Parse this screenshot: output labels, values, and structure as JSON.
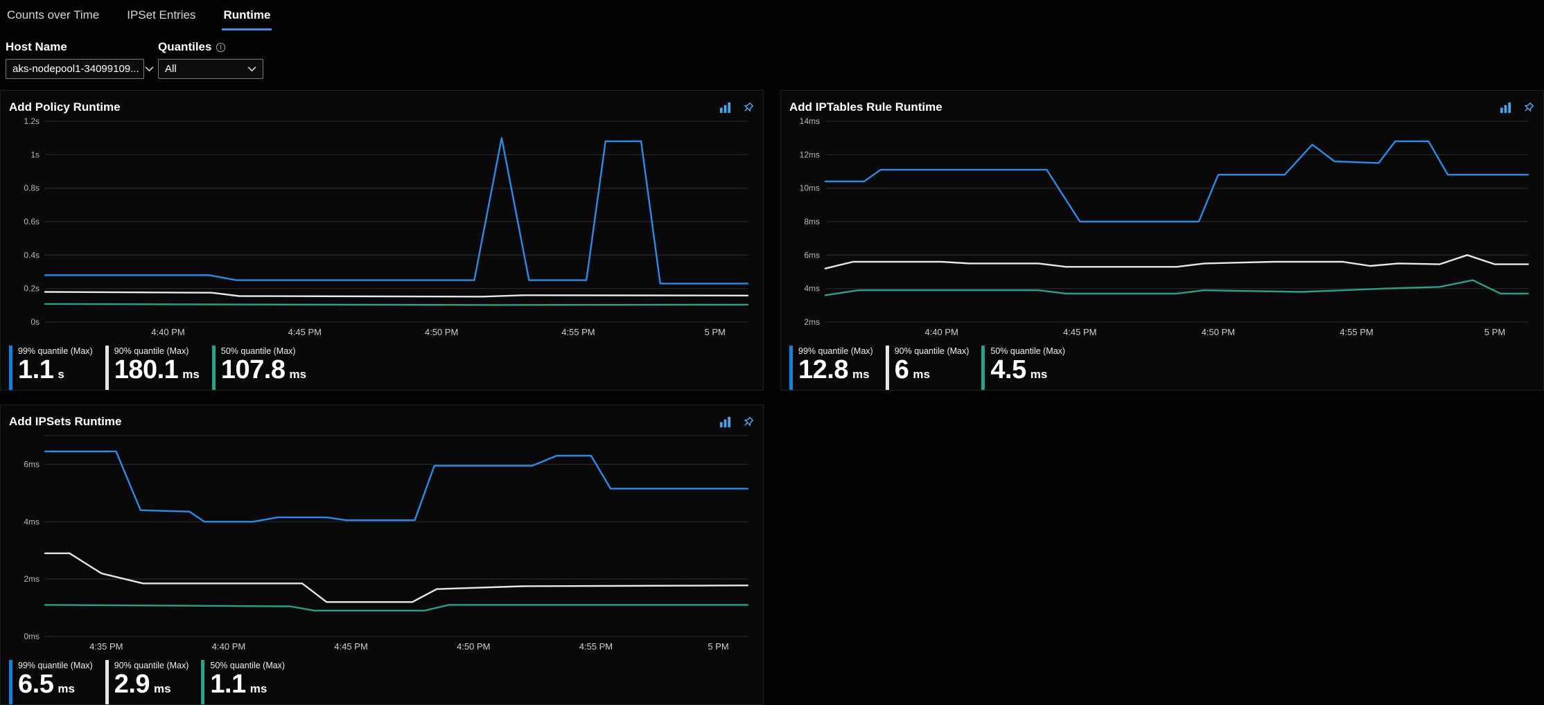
{
  "tabs": [
    {
      "label": "Counts over Time",
      "active": false
    },
    {
      "label": "IPSet Entries",
      "active": false
    },
    {
      "label": "Runtime",
      "active": true
    }
  ],
  "filters": {
    "host_label": "Host Name",
    "host_value": "aks-nodepool1-34099109...",
    "quantiles_label": "Quantiles",
    "quantiles_value": "All"
  },
  "colors": {
    "accent_blue": "#3d96dd",
    "icon_blue": "#4da2e8",
    "series_blue": "#2a8ce8",
    "series_white": "#e8e8e8",
    "series_teal": "#2aa18a",
    "legend_bar_blue": "#0d85de",
    "grid_line": "#2e2e2e"
  },
  "chart_data": [
    {
      "type": "line",
      "title": "Add Policy Runtime",
      "x_domain": [
        35.5,
        61.2
      ],
      "x_ticks": [
        {
          "x": 40,
          "label": "4:40 PM"
        },
        {
          "x": 45,
          "label": "4:45 PM"
        },
        {
          "x": 50,
          "label": "4:50 PM"
        },
        {
          "x": 55,
          "label": "4:55 PM"
        },
        {
          "x": 60,
          "label": "5 PM"
        }
      ],
      "y_domain": [
        0,
        1.2
      ],
      "y_ticks": [
        {
          "y": 0,
          "label": "0s"
        },
        {
          "y": 0.2,
          "label": "0.2s"
        },
        {
          "y": 0.4,
          "label": "0.4s"
        },
        {
          "y": 0.6,
          "label": "0.6s"
        },
        {
          "y": 0.8,
          "label": "0.8s"
        },
        {
          "y": 1,
          "label": "1s"
        },
        {
          "y": 1.2,
          "label": "1.2s"
        }
      ],
      "series": [
        {
          "name": "99% quantile (Max)",
          "color": "#2a8ce8",
          "points": [
            [
              35.5,
              0.28
            ],
            [
              41.5,
              0.28
            ],
            [
              42.5,
              0.25
            ],
            [
              51.2,
              0.25
            ],
            [
              52.2,
              1.1
            ],
            [
              53.2,
              0.25
            ],
            [
              55.3,
              0.25
            ],
            [
              56.0,
              1.08
            ],
            [
              57.3,
              1.08
            ],
            [
              58.0,
              0.23
            ],
            [
              61.2,
              0.23
            ]
          ]
        },
        {
          "name": "90% quantile (Max)",
          "color": "#e8e8e8",
          "points": [
            [
              35.5,
              0.18
            ],
            [
              41.6,
              0.175
            ],
            [
              42.6,
              0.155
            ],
            [
              51.5,
              0.152
            ],
            [
              53.0,
              0.16
            ],
            [
              61.2,
              0.158
            ]
          ]
        },
        {
          "name": "50% quantile (Max)",
          "color": "#2aa18a",
          "points": [
            [
              35.5,
              0.108
            ],
            [
              42.0,
              0.105
            ],
            [
              52.0,
              0.102
            ],
            [
              61.2,
              0.104
            ]
          ]
        }
      ],
      "legend": [
        {
          "label": "99% quantile (Max)",
          "value": "1.1",
          "unit": "s",
          "color": "#0d85de"
        },
        {
          "label": "90% quantile (Max)",
          "value": "180.1",
          "unit": "ms",
          "color": "#e8e8e8"
        },
        {
          "label": "50% quantile (Max)",
          "value": "107.8",
          "unit": "ms",
          "color": "#2aa18a"
        }
      ]
    },
    {
      "type": "line",
      "title": "Add IPTables Rule Runtime",
      "x_domain": [
        35.8,
        61.2
      ],
      "x_ticks": [
        {
          "x": 40,
          "label": "4:40 PM"
        },
        {
          "x": 45,
          "label": "4:45 PM"
        },
        {
          "x": 50,
          "label": "4:50 PM"
        },
        {
          "x": 55,
          "label": "4:55 PM"
        },
        {
          "x": 60,
          "label": "5 PM"
        }
      ],
      "y_domain": [
        2,
        14
      ],
      "y_ticks": [
        {
          "y": 2,
          "label": "2ms"
        },
        {
          "y": 4,
          "label": "4ms"
        },
        {
          "y": 6,
          "label": "6ms"
        },
        {
          "y": 8,
          "label": "8ms"
        },
        {
          "y": 10,
          "label": "10ms"
        },
        {
          "y": 12,
          "label": "12ms"
        },
        {
          "y": 14,
          "label": "14ms"
        }
      ],
      "series": [
        {
          "name": "99% quantile (Max)",
          "color": "#2a8ce8",
          "points": [
            [
              35.8,
              10.4
            ],
            [
              37.2,
              10.4
            ],
            [
              37.8,
              11.1
            ],
            [
              43.8,
              11.1
            ],
            [
              45.0,
              8.0
            ],
            [
              49.3,
              8.0
            ],
            [
              50.0,
              10.8
            ],
            [
              52.4,
              10.8
            ],
            [
              53.4,
              12.6
            ],
            [
              54.2,
              11.6
            ],
            [
              55.8,
              11.5
            ],
            [
              56.4,
              12.8
            ],
            [
              57.6,
              12.8
            ],
            [
              58.3,
              10.8
            ],
            [
              61.2,
              10.8
            ]
          ]
        },
        {
          "name": "90% quantile (Max)",
          "color": "#e8e8e8",
          "points": [
            [
              35.8,
              5.2
            ],
            [
              36.8,
              5.6
            ],
            [
              40.0,
              5.6
            ],
            [
              41.0,
              5.5
            ],
            [
              43.5,
              5.5
            ],
            [
              44.5,
              5.3
            ],
            [
              48.5,
              5.3
            ],
            [
              49.5,
              5.5
            ],
            [
              52.0,
              5.6
            ],
            [
              54.5,
              5.6
            ],
            [
              55.5,
              5.35
            ],
            [
              56.5,
              5.5
            ],
            [
              58.0,
              5.45
            ],
            [
              59.0,
              6.0
            ],
            [
              60.0,
              5.45
            ],
            [
              61.2,
              5.45
            ]
          ]
        },
        {
          "name": "50% quantile (Max)",
          "color": "#2aa18a",
          "points": [
            [
              35.8,
              3.6
            ],
            [
              37.0,
              3.9
            ],
            [
              43.5,
              3.9
            ],
            [
              44.5,
              3.7
            ],
            [
              48.5,
              3.7
            ],
            [
              49.5,
              3.9
            ],
            [
              53.0,
              3.8
            ],
            [
              56.0,
              4.0
            ],
            [
              58.0,
              4.1
            ],
            [
              59.2,
              4.5
            ],
            [
              60.2,
              3.7
            ],
            [
              61.2,
              3.7
            ]
          ]
        }
      ],
      "legend": [
        {
          "label": "99% quantile (Max)",
          "value": "12.8",
          "unit": "ms",
          "color": "#0d85de"
        },
        {
          "label": "90% quantile (Max)",
          "value": "6",
          "unit": "ms",
          "color": "#e8e8e8"
        },
        {
          "label": "50% quantile (Max)",
          "value": "4.5",
          "unit": "ms",
          "color": "#2aa18a"
        }
      ]
    },
    {
      "type": "line",
      "title": "Add IPSets Runtime",
      "x_domain": [
        32.5,
        61.2
      ],
      "x_ticks": [
        {
          "x": 35,
          "label": "4:35 PM"
        },
        {
          "x": 40,
          "label": "4:40 PM"
        },
        {
          "x": 45,
          "label": "4:45 PM"
        },
        {
          "x": 50,
          "label": "4:50 PM"
        },
        {
          "x": 55,
          "label": "4:55 PM"
        },
        {
          "x": 60,
          "label": "5 PM"
        }
      ],
      "y_domain": [
        0,
        7
      ],
      "y_ticks": [
        {
          "y": 0,
          "label": "0ms"
        },
        {
          "y": 2,
          "label": "2ms"
        },
        {
          "y": 4,
          "label": "4ms"
        },
        {
          "y": 6,
          "label": "6ms"
        }
      ],
      "series": [
        {
          "name": "99% quantile (Max)",
          "color": "#2a8ce8",
          "points": [
            [
              32.5,
              6.45
            ],
            [
              35.4,
              6.45
            ],
            [
              36.4,
              4.4
            ],
            [
              38.4,
              4.35
            ],
            [
              39.0,
              4.0
            ],
            [
              41.0,
              4.0
            ],
            [
              42.0,
              4.15
            ],
            [
              44.0,
              4.15
            ],
            [
              44.8,
              4.05
            ],
            [
              47.6,
              4.05
            ],
            [
              48.4,
              5.95
            ],
            [
              52.4,
              5.95
            ],
            [
              53.4,
              6.3
            ],
            [
              54.8,
              6.3
            ],
            [
              55.6,
              5.15
            ],
            [
              61.2,
              5.15
            ]
          ]
        },
        {
          "name": "90% quantile (Max)",
          "color": "#e8e8e8",
          "points": [
            [
              32.5,
              2.9
            ],
            [
              33.5,
              2.9
            ],
            [
              34.8,
              2.2
            ],
            [
              36.5,
              1.85
            ],
            [
              43.0,
              1.85
            ],
            [
              44.0,
              1.2
            ],
            [
              47.5,
              1.2
            ],
            [
              48.5,
              1.65
            ],
            [
              52.0,
              1.75
            ],
            [
              61.2,
              1.78
            ]
          ]
        },
        {
          "name": "50% quantile (Max)",
          "color": "#2aa18a",
          "points": [
            [
              32.5,
              1.1
            ],
            [
              42.5,
              1.05
            ],
            [
              43.5,
              0.9
            ],
            [
              48.0,
              0.9
            ],
            [
              49.0,
              1.1
            ],
            [
              61.2,
              1.1
            ]
          ]
        }
      ],
      "legend": [
        {
          "label": "99% quantile (Max)",
          "value": "6.5",
          "unit": "ms",
          "color": "#0d85de"
        },
        {
          "label": "90% quantile (Max)",
          "value": "2.9",
          "unit": "ms",
          "color": "#e8e8e8"
        },
        {
          "label": "50% quantile (Max)",
          "value": "1.1",
          "unit": "ms",
          "color": "#2aa18a"
        }
      ]
    }
  ]
}
